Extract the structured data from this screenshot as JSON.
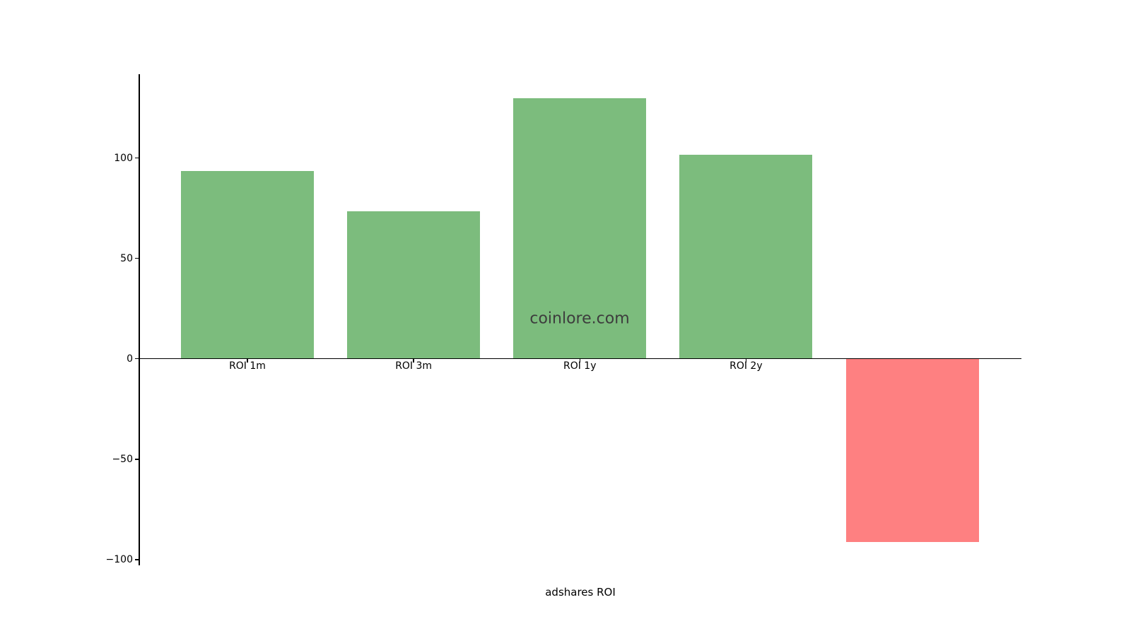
{
  "chart_data": {
    "type": "bar",
    "watermark": "coinlore.com",
    "xlabel": "adshares ROI",
    "categories": [
      "ROI 1m",
      "ROI 3m",
      "ROI 1y",
      "ROI 2y",
      ""
    ],
    "values": [
      93.6,
      73.4,
      129.8,
      101.6,
      -91.4
    ],
    "bar_colors": [
      "#7cbc7d",
      "#7cbc7d",
      "#7cbc7d",
      "#7cbc7d",
      "#fe8081"
    ],
    "positive_color": "#7cbc7d",
    "negative_color": "#fe8081",
    "ylim": [
      -102.9,
      141.8
    ],
    "yticks": [
      {
        "value": 100,
        "label": "100"
      },
      {
        "value": 50,
        "label": "50"
      },
      {
        "value": 0,
        "label": "0"
      },
      {
        "value": -50,
        "label": "−50"
      },
      {
        "value": -100,
        "label": "−100"
      }
    ],
    "grid": false,
    "legend": false,
    "axis_color": "#000000",
    "text_color": "#000000",
    "watermark_color": "#3d3d3d"
  }
}
